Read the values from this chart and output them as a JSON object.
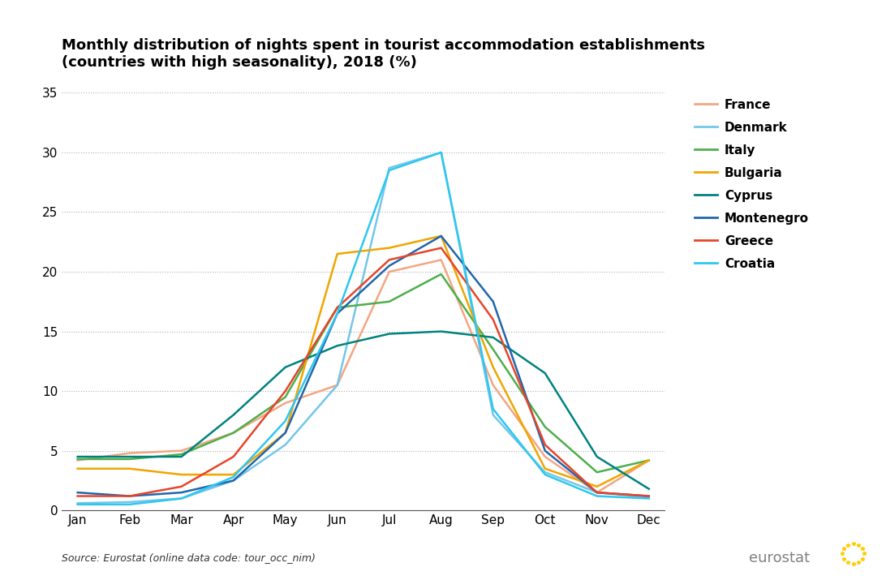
{
  "title": "Monthly distribution of nights spent in tourist accommodation establishments\n(countries with high seasonality), 2018 (%)",
  "months": [
    "Jan",
    "Feb",
    "Mar",
    "Apr",
    "May",
    "Jun",
    "Jul",
    "Aug",
    "Sep",
    "Oct",
    "Nov",
    "Dec"
  ],
  "series": {
    "France": {
      "color": "#f4a582",
      "values": [
        4.2,
        4.8,
        5.0,
        6.5,
        9.0,
        10.5,
        20.0,
        21.0,
        10.5,
        4.5,
        1.5,
        4.2
      ]
    },
    "Denmark": {
      "color": "#74c6e8",
      "values": [
        0.6,
        0.7,
        1.0,
        2.5,
        5.5,
        10.5,
        28.7,
        30.0,
        8.0,
        3.2,
        1.5,
        1.1
      ]
    },
    "Italy": {
      "color": "#4daf4a",
      "values": [
        4.3,
        4.3,
        4.7,
        6.5,
        9.5,
        17.0,
        17.5,
        19.8,
        13.5,
        7.0,
        3.2,
        4.2
      ]
    },
    "Bulgaria": {
      "color": "#f0a500",
      "values": [
        3.5,
        3.5,
        3.0,
        3.0,
        6.5,
        21.5,
        22.0,
        23.0,
        12.0,
        3.5,
        2.0,
        4.2
      ]
    },
    "Cyprus": {
      "color": "#00827f",
      "values": [
        4.5,
        4.5,
        4.5,
        8.0,
        12.0,
        13.8,
        14.8,
        15.0,
        14.5,
        11.5,
        4.5,
        1.8
      ]
    },
    "Montenegro": {
      "color": "#2166ac",
      "values": [
        1.5,
        1.2,
        1.5,
        2.5,
        6.5,
        16.5,
        20.5,
        23.0,
        17.5,
        5.0,
        1.5,
        1.2
      ]
    },
    "Greece": {
      "color": "#e6452a",
      "values": [
        1.2,
        1.2,
        2.0,
        4.5,
        10.0,
        17.0,
        21.0,
        22.0,
        16.0,
        5.5,
        1.5,
        1.2
      ]
    },
    "Croatia": {
      "color": "#2ec7f0",
      "values": [
        0.5,
        0.5,
        1.0,
        2.8,
        7.5,
        16.5,
        28.5,
        30.0,
        8.5,
        3.0,
        1.2,
        1.0
      ]
    }
  },
  "ylim": [
    0,
    35
  ],
  "yticks": [
    0,
    5,
    10,
    15,
    20,
    25,
    30,
    35
  ],
  "source_text": "Source: Eurostat (online data code: tour_occ_nim)",
  "background_color": "#ffffff",
  "grid_color": "#b0b0b0"
}
